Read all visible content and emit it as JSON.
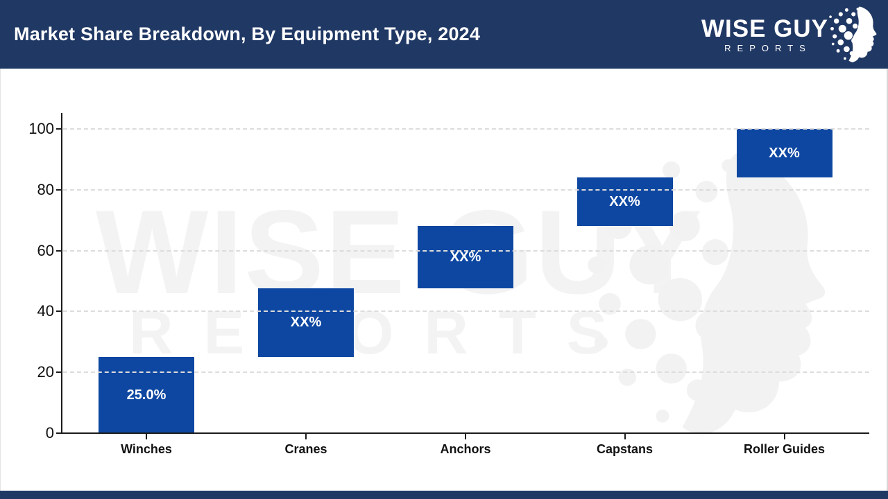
{
  "header": {
    "title": "Market Share Breakdown, By Equipment Type, 2024",
    "background_color": "#203864",
    "logo": {
      "brand_line1": "WISE GUY",
      "brand_line2": "REPORTS"
    }
  },
  "watermark": {
    "line1": "WISE GUY",
    "line2": "REPORTS"
  },
  "chart_data": {
    "type": "bar",
    "subtype": "waterfall",
    "title": "Market Share Breakdown, By Equipment Type, 2024",
    "categories": [
      "Winches",
      "Cranes",
      "Anchors",
      "Capstans",
      "Roller Guides"
    ],
    "segments": [
      {
        "category": "Winches",
        "start": 0,
        "end": 25,
        "label": "25.0%"
      },
      {
        "category": "Cranes",
        "start": 25,
        "end": 47.5,
        "label": "XX%"
      },
      {
        "category": "Anchors",
        "start": 47.5,
        "end": 68,
        "label": "XX%"
      },
      {
        "category": "Capstans",
        "start": 68,
        "end": 84,
        "label": "XX%"
      },
      {
        "category": "Roller Guides",
        "start": 84,
        "end": 100,
        "label": "XX%"
      }
    ],
    "y_axis": {
      "ticks": [
        0,
        20,
        40,
        60,
        80,
        100
      ],
      "range": [
        0,
        105
      ]
    },
    "xlabel": "",
    "ylabel": "",
    "legend": null,
    "grid": {
      "axis": "y",
      "style": "dashed",
      "color": "#dcdcdc",
      "above_bars": true
    },
    "bar_color": "#0d47a1",
    "bar_label_color": "#ffffff"
  }
}
